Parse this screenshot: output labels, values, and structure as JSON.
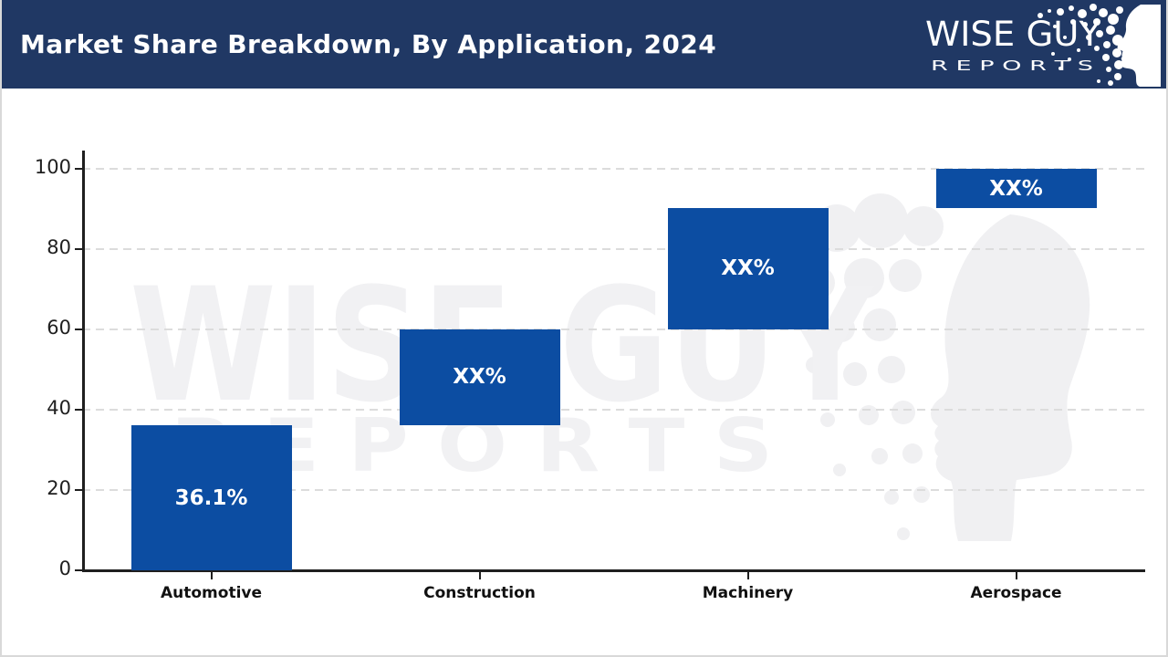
{
  "header": {
    "title": "Market Share Breakdown, By Application, 2024",
    "logo": {
      "line1": "WISE GUY",
      "line2": "R E P O R T S"
    }
  },
  "watermark": {
    "line1": "WISE GUY",
    "line2": "R E P O R T S"
  },
  "chart_data": {
    "type": "bar",
    "subtype": "waterfall",
    "title": "Market Share Breakdown, By Application, 2024",
    "categories": [
      "Automotive",
      "Construction",
      "Machinery",
      "Aerospace"
    ],
    "segments": [
      {
        "category": "Automotive",
        "start": 0,
        "end": 36.1,
        "label": "36.1%"
      },
      {
        "category": "Construction",
        "start": 36.1,
        "end": 60.1,
        "label": "XX%"
      },
      {
        "category": "Machinery",
        "start": 60.1,
        "end": 90.2,
        "label": "XX%"
      },
      {
        "category": "Aerospace",
        "start": 90.2,
        "end": 100,
        "label": "XX%"
      }
    ],
    "yticks": [
      0,
      20,
      40,
      60,
      80,
      100
    ],
    "ylim": [
      0,
      105
    ],
    "xlabel": "",
    "ylabel": "",
    "grid": "horizontal-dashed",
    "legend": "none",
    "colors": {
      "bar": "#0C4DA2",
      "bar_label": "#FFFFFF",
      "axis": "#1F1F1F",
      "tick_label": "#1F1F1F",
      "category_label": "#111111",
      "grid": "#DCDCDC",
      "header_bg": "#203864",
      "header_text": "#FFFFFF",
      "watermark": "#F1F1F3"
    }
  }
}
